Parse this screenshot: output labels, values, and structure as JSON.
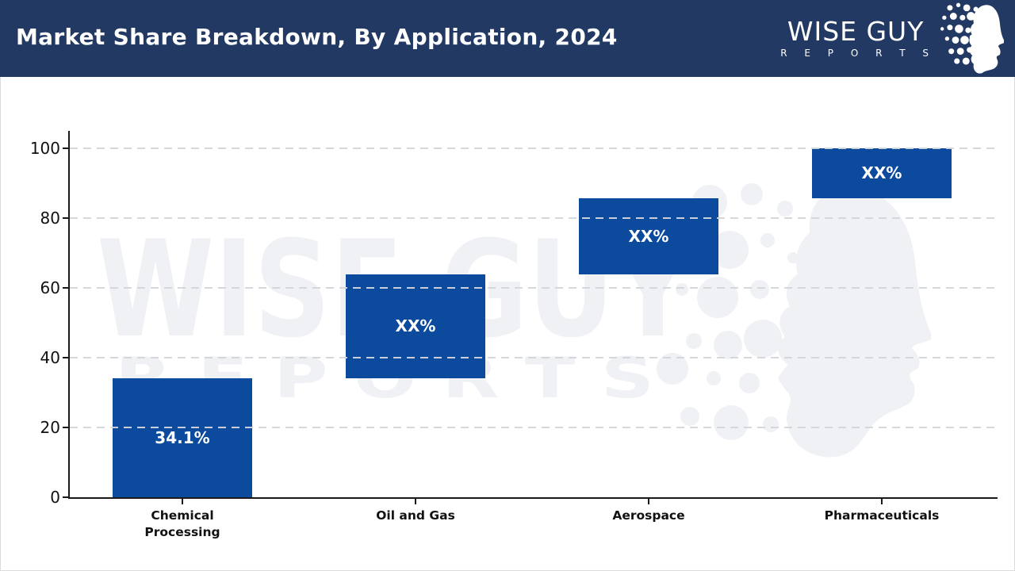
{
  "header": {
    "title": "Market Share Breakdown, By Application, 2024",
    "logo": {
      "line1": "WISE GUY",
      "line2": "R E P O R T S"
    }
  },
  "watermark": {
    "line1": "WISE GUY",
    "line2": "R E P O R T S"
  },
  "colors": {
    "header_bg": "#223a63",
    "bar": "#0c4a9e",
    "grid": "#d6d8db",
    "axis": "#1a1a1a",
    "watermark": "#f0f1f4",
    "title_text": "#ffffff",
    "bar_label_text": "#ffffff"
  },
  "chart_data": {
    "type": "bar",
    "subtype": "stacked-waterfall",
    "title": "Market Share Breakdown, By Application, 2024",
    "categories": [
      "Chemical Processing",
      "Oil and Gas",
      "Aerospace",
      "Pharmaceuticals"
    ],
    "segments": [
      {
        "category": "Chemical Processing",
        "start": 0,
        "end": 34.1,
        "label": "34.1%"
      },
      {
        "category": "Oil and Gas",
        "start": 34.1,
        "end": 63.9,
        "label": "XX%"
      },
      {
        "category": "Aerospace",
        "start": 63.9,
        "end": 85.7,
        "label": "XX%"
      },
      {
        "category": "Pharmaceuticals",
        "start": 85.7,
        "end": 100,
        "label": "XX%"
      }
    ],
    "values_note": "segment heights: 34.1, ~29.8 (XX%), ~21.8 (XX%), ~14.3 (XX%); cumulative total 100",
    "xlabel": "",
    "ylabel": "",
    "ylim": [
      0,
      100
    ],
    "yticks": [
      0,
      20,
      40,
      60,
      80,
      100
    ],
    "grid": "horizontal-dashed",
    "legend": "none",
    "bar_color": "#0c4a9e"
  }
}
